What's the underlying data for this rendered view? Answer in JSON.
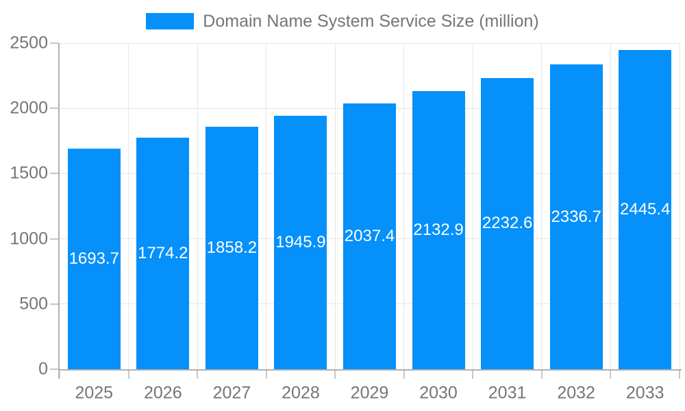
{
  "chart_data": {
    "type": "bar",
    "legend_label": "Domain Name System Service Size (million)",
    "categories": [
      "2025",
      "2026",
      "2027",
      "2028",
      "2029",
      "2030",
      "2031",
      "2032",
      "2033"
    ],
    "values": [
      1693.7,
      1774.2,
      1858.2,
      1945.9,
      2037.4,
      2132.9,
      2232.6,
      2336.7,
      2445.4
    ],
    "value_labels": [
      "1693.7",
      "1774.2",
      "1858.2",
      "1945.9",
      "2037.4",
      "2132.9",
      "2232.6",
      "2336.7",
      "2445.4"
    ],
    "title": "",
    "xlabel": "",
    "ylabel": "",
    "ylim": [
      0,
      2500
    ],
    "ytick_step": 500,
    "ytick_labels": [
      "0",
      "500",
      "1000",
      "1500",
      "2000",
      "2500"
    ],
    "grid": true,
    "legend_position": "top-center",
    "value_label_position": "center-of-bar",
    "colors": {
      "bar": "#0590fa",
      "grid": "#e6e6e6",
      "axis": "#b1b1b1",
      "tick": "#c6c6c6",
      "text": "#757575",
      "bar_label": "#ffffff",
      "background": "#ffffff"
    }
  }
}
